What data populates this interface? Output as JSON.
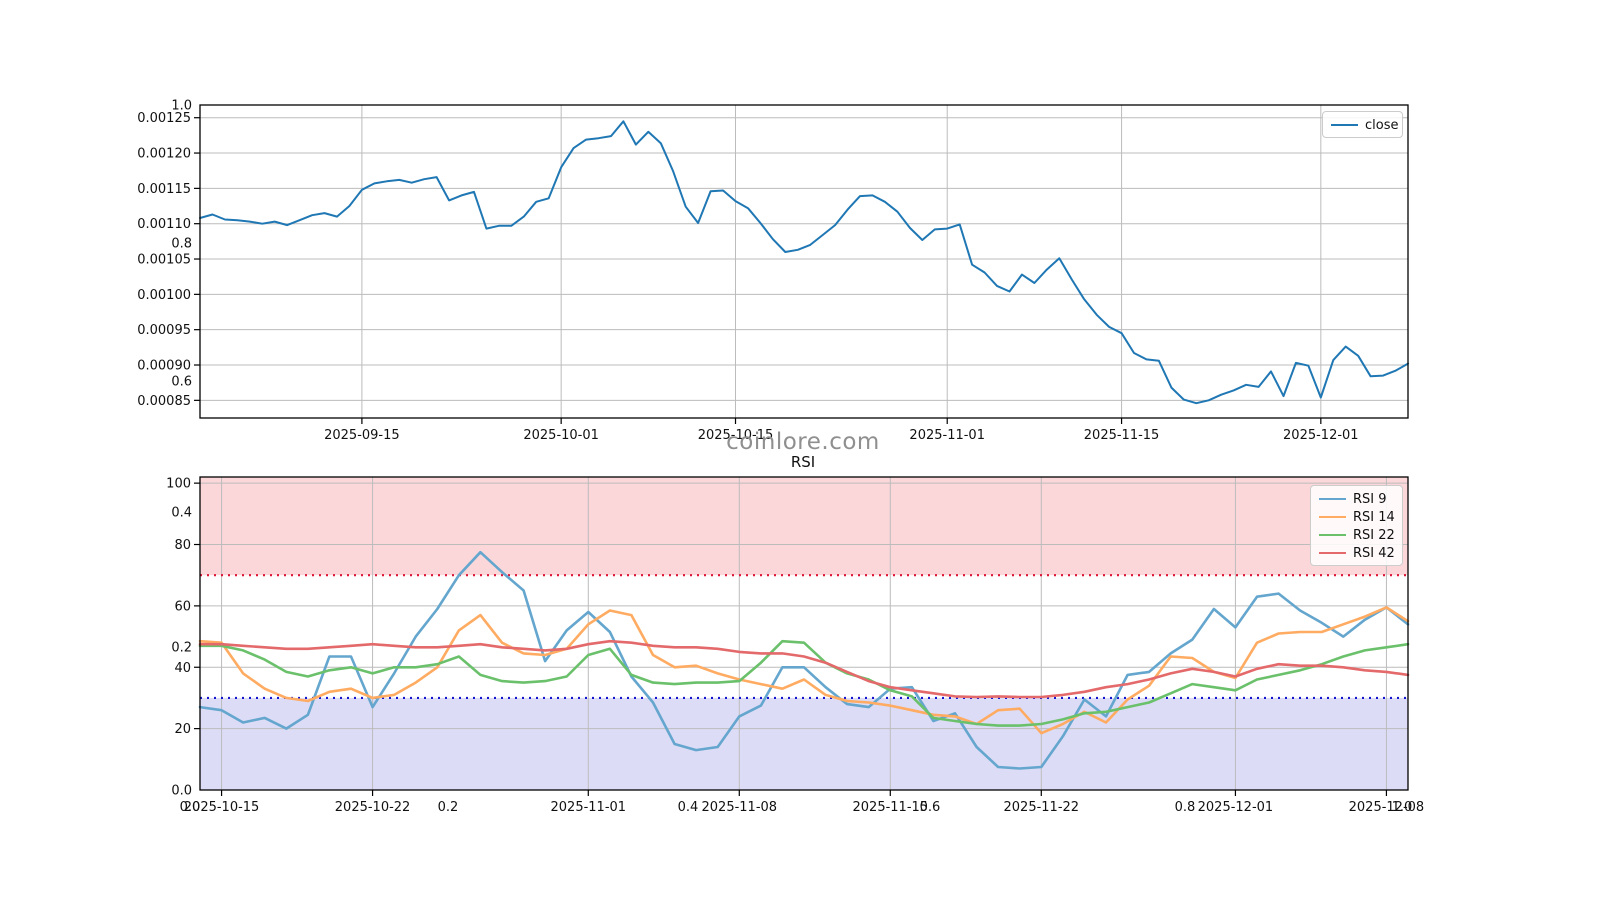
{
  "watermark": "coinlore.com",
  "rsi_title": "RSI",
  "colors": {
    "close": "#1f77b4",
    "rsi9": "#64a6ce",
    "rsi14": "#ffab62",
    "rsi22": "#6bc16b",
    "rsi42": "#e4696a",
    "overbought_band": "#fbd7da",
    "oversold_band": "#dddcf6",
    "overbought_line": "#dc1435",
    "oversold_line": "#1515d0",
    "grid": "#bcbcbc",
    "frame": "#000000",
    "tick_text": "#111111",
    "watermark_text": "#8f8f8f"
  },
  "figure_axis": {
    "x_labels": [
      "0.0",
      "0.2",
      "0.4",
      "0.6",
      "0.8",
      "1.0"
    ],
    "y_labels": [
      "1.0",
      "0.8",
      "0.6",
      "0.4",
      "0.2",
      "0.0"
    ]
  },
  "chart_data": [
    {
      "type": "line",
      "name": "close-price-chart",
      "start_date": "2025-09-02",
      "ylim": [
        0.000825,
        0.001268
      ],
      "grid": true,
      "legend_position": "top-right",
      "legend": [
        "close"
      ],
      "xticks": [
        "2025-09-15",
        "2025-10-01",
        "2025-10-15",
        "2025-11-01",
        "2025-11-15",
        "2025-12-01"
      ],
      "yticks": {
        "values": [
          0.00085,
          0.0009,
          0.00095,
          0.001,
          0.00105,
          0.0011,
          0.00115,
          0.0012,
          0.00125
        ],
        "labels": [
          "0.00085",
          "0.00090",
          "0.00095",
          "0.00100",
          "0.00105",
          "0.00110",
          "0.00115",
          "0.00120",
          "0.00125"
        ]
      },
      "series": [
        {
          "name": "close",
          "color_key": "close",
          "width": 2,
          "values": [
            0.001108,
            0.001113,
            0.001106,
            0.001105,
            0.001103,
            0.0011,
            0.001103,
            0.001098,
            0.001105,
            0.001112,
            0.001115,
            0.00111,
            0.001125,
            0.001148,
            0.001157,
            0.00116,
            0.001162,
            0.001158,
            0.001163,
            0.001166,
            0.001133,
            0.00114,
            0.001145,
            0.001093,
            0.001097,
            0.001097,
            0.00111,
            0.001131,
            0.001136,
            0.00118,
            0.001207,
            0.001219,
            0.001221,
            0.001224,
            0.001245,
            0.001212,
            0.00123,
            0.001214,
            0.001174,
            0.001124,
            0.001101,
            0.001146,
            0.001147,
            0.001132,
            0.001122,
            0.001101,
            0.001078,
            0.00106,
            0.001063,
            0.00107,
            0.001084,
            0.001098,
            0.00112,
            0.001139,
            0.00114,
            0.001131,
            0.001117,
            0.001094,
            0.001077,
            0.001092,
            0.001093,
            0.001099,
            0.001042,
            0.001031,
            0.001012,
            0.001004,
            0.001028,
            0.001016,
            0.001035,
            0.001051,
            0.001021,
            0.000993,
            0.000971,
            0.000954,
            0.000945,
            0.000917,
            0.000908,
            0.000906,
            0.000868,
            0.000851,
            0.000846,
            0.00085,
            0.000858,
            0.000864,
            0.000872,
            0.000869,
            0.000891,
            0.000856,
            0.000903,
            0.000899,
            0.000854,
            0.000907,
            0.000926,
            0.000913,
            0.000884,
            0.000885,
            0.000892,
            0.000902
          ]
        }
      ]
    },
    {
      "type": "line",
      "name": "rsi-chart",
      "start_date": "2025-10-14",
      "ylim": [
        0,
        102
      ],
      "grid": true,
      "legend_position": "top-right",
      "legend": [
        "RSI 9",
        "RSI 14",
        "RSI 22",
        "RSI 42"
      ],
      "bands": [
        {
          "from": 70,
          "to": 102,
          "color_key": "overbought_band"
        },
        {
          "from": 0,
          "to": 30,
          "color_key": "oversold_band"
        }
      ],
      "hlines": [
        {
          "y": 70,
          "color_key": "overbought_line"
        },
        {
          "y": 30,
          "color_key": "oversold_line"
        }
      ],
      "xticks": [
        "2025-10-15",
        "2025-10-22",
        "2025-11-01",
        "2025-11-08",
        "2025-11-15",
        "2025-11-22",
        "2025-12-01",
        "2025-12-08"
      ],
      "yticks": {
        "values": [
          20,
          40,
          60,
          80,
          100
        ],
        "labels": [
          "20",
          "40",
          "60",
          "80",
          "100"
        ]
      },
      "series": [
        {
          "name": "RSI 9",
          "color_key": "rsi9",
          "width": 2.6,
          "values": [
            27,
            26,
            22,
            23.5,
            20,
            24.5,
            43.5,
            43.5,
            27,
            38,
            50,
            59,
            70,
            77.5,
            71,
            65,
            42,
            52,
            58,
            51.5,
            37,
            28.5,
            15,
            13,
            14,
            24,
            27.5,
            40,
            40,
            33.5,
            28,
            27,
            33,
            33.5,
            22.5,
            25,
            14,
            7.5,
            7,
            7.5,
            17.5,
            29.5,
            24,
            37.5,
            38.5,
            44.5,
            49,
            59,
            53,
            63,
            64,
            58.5,
            54.5,
            50,
            55.5,
            59.5,
            54
          ]
        },
        {
          "name": "RSI 14",
          "color_key": "rsi14",
          "width": 2.6,
          "values": [
            48.5,
            48,
            38,
            33,
            30,
            29,
            32,
            33,
            30,
            31,
            35,
            40,
            52,
            57,
            48,
            44.5,
            44,
            46,
            54,
            58.5,
            57,
            44,
            40,
            40.5,
            38,
            36,
            34.5,
            33,
            36,
            31,
            29,
            28.5,
            27.5,
            26,
            24.5,
            24,
            21.5,
            26,
            26.5,
            18.5,
            21.5,
            25.5,
            22,
            29.5,
            34,
            43.5,
            43,
            38.5,
            36.5,
            48,
            51,
            51.5,
            51.5,
            54,
            56.5,
            59.5,
            55
          ]
        },
        {
          "name": "RSI 22",
          "color_key": "rsi22",
          "width": 2.6,
          "values": [
            47,
            47,
            45.5,
            42.5,
            38.5,
            37,
            39,
            40,
            38,
            40,
            40,
            41,
            43.5,
            37.5,
            35.5,
            35,
            35.5,
            37,
            44,
            46,
            37.5,
            35,
            34.5,
            35,
            35,
            35.5,
            41.5,
            48.5,
            48,
            41.5,
            38,
            36,
            32.5,
            30.5,
            23.5,
            22.5,
            21.5,
            21,
            21,
            21.5,
            23,
            25,
            25.5,
            27,
            28.5,
            31.5,
            34.5,
            33.5,
            32.5,
            36,
            37.5,
            39,
            41,
            43.5,
            45.5,
            46.5,
            47.5
          ]
        },
        {
          "name": "RSI 42",
          "color_key": "rsi42",
          "width": 2.6,
          "values": [
            47.5,
            47.5,
            47,
            46.5,
            46,
            46,
            46.5,
            47,
            47.5,
            47,
            46.5,
            46.5,
            47,
            47.5,
            46.5,
            46,
            45.5,
            46,
            47.5,
            48.5,
            48,
            47,
            46.5,
            46.5,
            46,
            45,
            44.5,
            44.5,
            43.5,
            41.5,
            38.5,
            35.5,
            33.5,
            32.5,
            31.5,
            30.5,
            30.3,
            30.5,
            30.3,
            30.3,
            31,
            32,
            33.5,
            34.5,
            36,
            38,
            39.5,
            38.5,
            37,
            39.5,
            41,
            40.5,
            40.5,
            40,
            39,
            38.5,
            37.5
          ]
        }
      ]
    }
  ]
}
